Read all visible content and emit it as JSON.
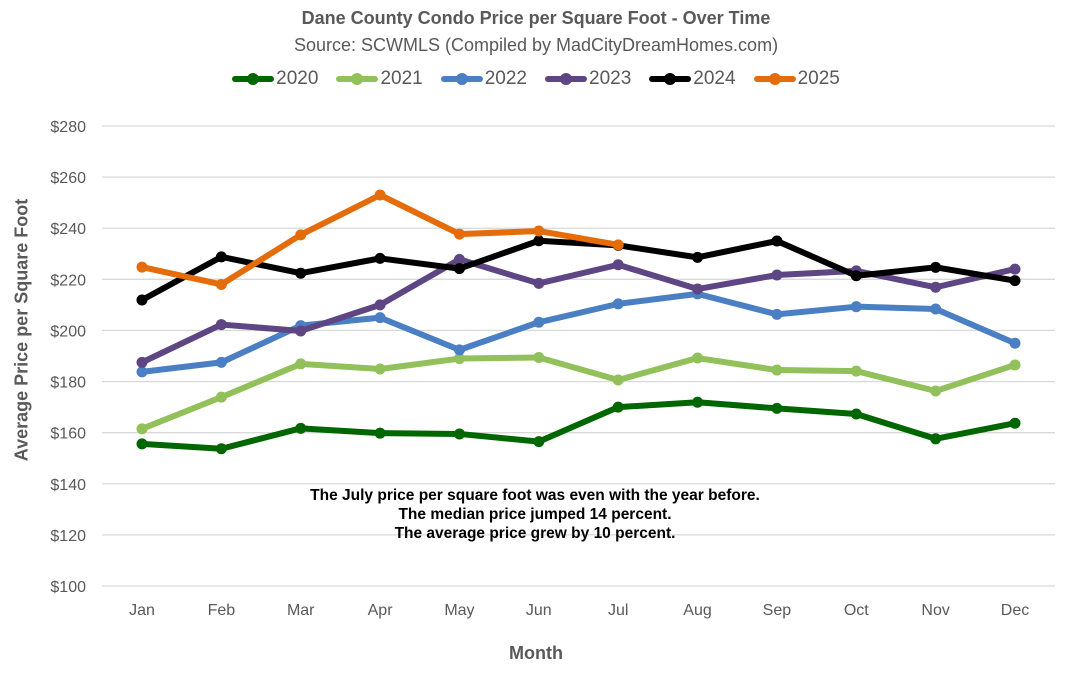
{
  "chart_data": {
    "type": "line",
    "title": "Dane County Condo Price per Square Foot - Over Time",
    "subtitle": "Source: SCWMLS (Compiled by MadCityDreamHomes.com)",
    "xlabel": "Month",
    "ylabel": "Average Price per Square Foot",
    "categories": [
      "Jan",
      "Feb",
      "Mar",
      "Apr",
      "May",
      "Jun",
      "Jul",
      "Aug",
      "Sep",
      "Oct",
      "Nov",
      "Dec"
    ],
    "ylim": [
      100,
      280
    ],
    "yticks": [
      100,
      120,
      140,
      160,
      180,
      200,
      220,
      240,
      260,
      280
    ],
    "ytick_labels": [
      "$100",
      "$120",
      "$140",
      "$160",
      "$180",
      "$200",
      "$220",
      "$240",
      "$260",
      "$280"
    ],
    "grid": true,
    "legend_position": "top",
    "series": [
      {
        "name": "2020",
        "color": "#006600",
        "values": [
          155.6,
          153.7,
          161.7,
          159.8,
          159.5,
          156.5,
          170.0,
          171.9,
          169.5,
          167.3,
          157.6,
          163.7
        ]
      },
      {
        "name": "2021",
        "color": "#92C05A",
        "values": [
          161.5,
          173.9,
          186.9,
          184.9,
          189.0,
          189.4,
          180.6,
          189.2,
          184.5,
          184.1,
          176.3,
          186.5
        ]
      },
      {
        "name": "2022",
        "color": "#4A7FC4",
        "values": [
          183.8,
          187.5,
          201.9,
          205.0,
          192.4,
          203.2,
          210.4,
          214.3,
          206.3,
          209.3,
          208.4,
          195.0
        ]
      },
      {
        "name": "2023",
        "color": "#5E4583",
        "values": [
          187.5,
          202.3,
          199.8,
          210.0,
          227.8,
          218.4,
          225.7,
          216.2,
          221.7,
          223.3,
          216.9,
          224.0
        ]
      },
      {
        "name": "2024",
        "color": "#000000",
        "values": [
          211.9,
          228.8,
          222.4,
          228.2,
          224.2,
          235.1,
          233.3,
          228.6,
          235.0,
          221.4,
          224.7,
          219.5
        ]
      },
      {
        "name": "2025",
        "color": "#E46C0A",
        "values": [
          224.8,
          218.0,
          237.4,
          253.0,
          237.7,
          238.9,
          233.5,
          null,
          null,
          null,
          null,
          null
        ]
      }
    ],
    "annotations": [
      "The July price per square foot was even with the year before.",
      "The median price jumped 14 percent.",
      "The average price grew by 10 percent."
    ]
  }
}
